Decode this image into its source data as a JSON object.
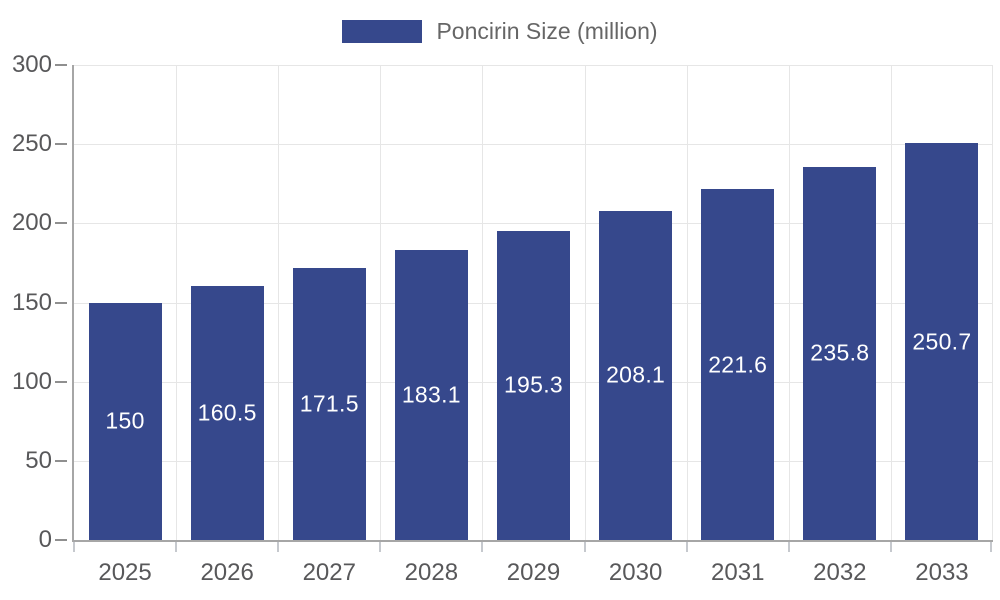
{
  "legend": {
    "label": "Poncirin Size (million)"
  },
  "chart_data": {
    "type": "bar",
    "title": "",
    "legend_label": "Poncirin Size (million)",
    "legend_position": "top-center",
    "categories": [
      "2025",
      "2026",
      "2027",
      "2028",
      "2029",
      "2030",
      "2031",
      "2032",
      "2033"
    ],
    "values": [
      150,
      160.5,
      171.5,
      183.1,
      195.3,
      208.1,
      221.6,
      235.8,
      250.7
    ],
    "value_labels": [
      "150",
      "160.5",
      "171.5",
      "183.1",
      "195.3",
      "208.1",
      "221.6",
      "235.8",
      "250.7"
    ],
    "xlabel": "",
    "ylabel": "",
    "ylim": [
      0,
      300
    ],
    "yticks": [
      0,
      50,
      100,
      150,
      200,
      250,
      300
    ],
    "grid": true,
    "colors": {
      "bar": "#36488c",
      "value_label": "#ffffff",
      "axis_text": "#58585a",
      "legend_text": "#666666",
      "grid_line": "#e6e6e6",
      "axis_line": "#a6a6a6",
      "y_tick": "#8f8f8f",
      "x_tick": "#c6c9ce"
    }
  }
}
